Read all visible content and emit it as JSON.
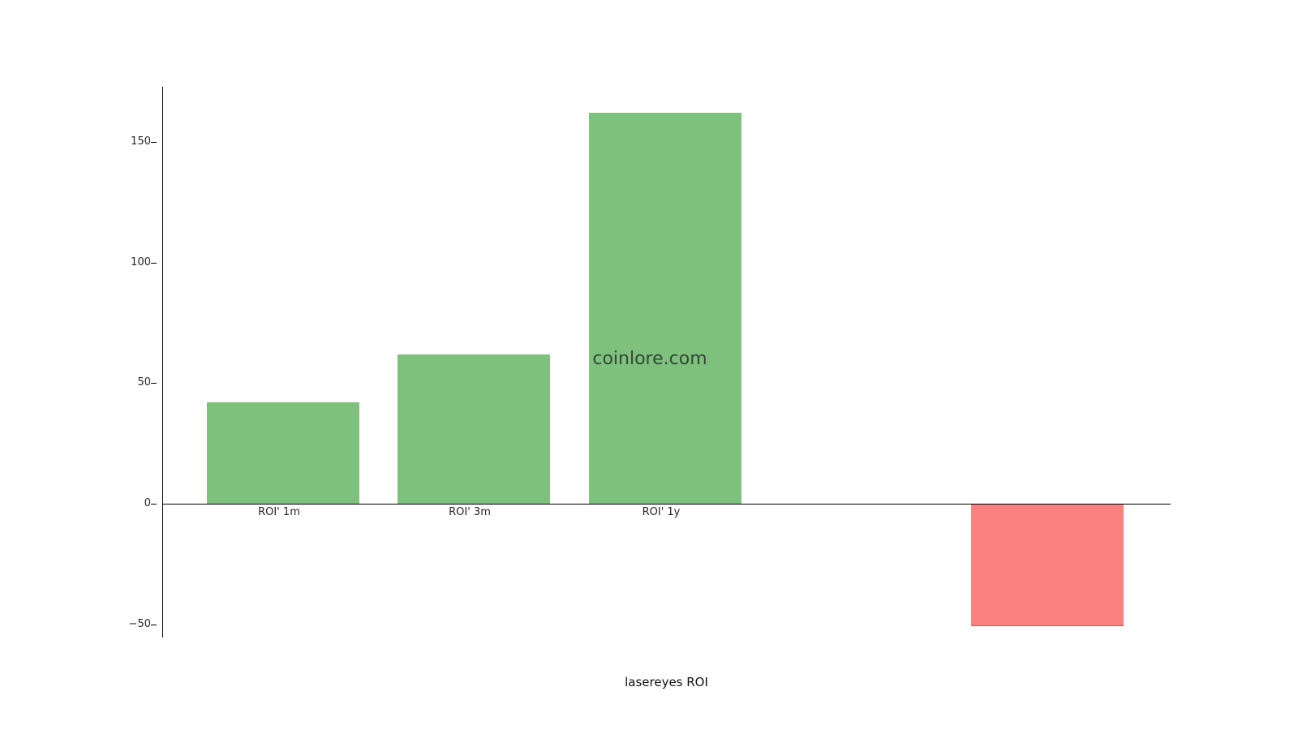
{
  "watermark": {
    "text": "coinlore.com",
    "color": "#2a302a"
  },
  "chart_data": {
    "type": "bar",
    "title": "",
    "xlabel": "lasereyes ROI",
    "ylabel": "",
    "ylim": [
      -62,
      173
    ],
    "grid": false,
    "legend": null,
    "colors": {
      "positive": "#7dc17d",
      "negative": "#fc8080",
      "axis": "#000000"
    },
    "y_axis": {
      "ticks": [
        {
          "label": "150",
          "value": 150
        },
        {
          "label": "100",
          "value": 100
        },
        {
          "label": "50",
          "value": 50
        },
        {
          "label": "0",
          "value": 0
        },
        {
          "label": "−50",
          "value": -50
        }
      ]
    },
    "categories": [
      "ROI' 1m",
      "ROI' 3m",
      "ROI' 1y",
      ""
    ],
    "bars": [
      {
        "label": "ROI' 1m",
        "value": 42,
        "color": "#7dc17d"
      },
      {
        "label": "ROI' 3m",
        "value": 62,
        "color": "#7dc17d"
      },
      {
        "label": "ROI' 1y",
        "value": 162,
        "color": "#7dc17d"
      },
      {
        "label": "",
        "value": -50,
        "color": "#fc8080"
      }
    ]
  }
}
